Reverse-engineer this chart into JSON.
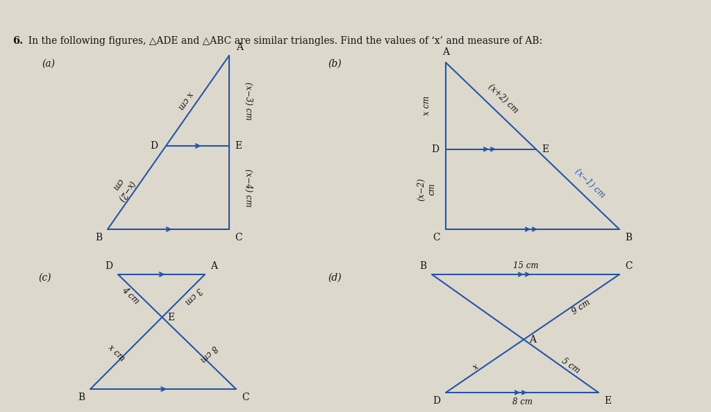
{
  "title_num": "6.",
  "title_text": "  In the following figures, △ADE and △ABC are similar triangles. Find the values of ‘x’ and measure of AB:",
  "bg_color": "#ddd8cc",
  "line_color": "#2255aa",
  "text_color": "#111111",
  "arrow_color": "#2255aa",
  "fig_a_label": "(a)",
  "fig_b_label": "(b)",
  "fig_c_label": "(c)",
  "fig_d_label": "(d)"
}
